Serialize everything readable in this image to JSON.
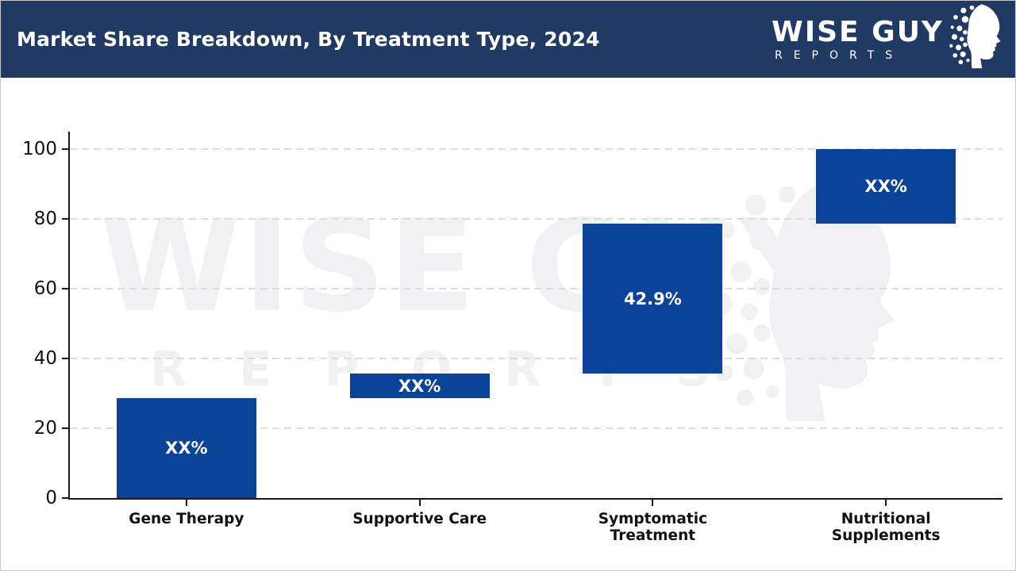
{
  "header": {
    "title": "Market Share Breakdown, By Treatment Type, 2024",
    "logo": {
      "line1": "WISE GUY",
      "line2": "REPORTS"
    }
  },
  "watermark": {
    "line1": "WISE GUY",
    "line2": "REPORTS"
  },
  "colors": {
    "header_bg": "#203a64",
    "bar": "#0b4399",
    "gridline": "#dcdcdc",
    "axis": "#1a1a1a",
    "watermark": "#f1f1f4"
  },
  "chart_data": {
    "type": "bar",
    "subtype": "waterfall-floating-bars",
    "title": "Market Share Breakdown, By Treatment Type, 2024",
    "categories": [
      "Gene Therapy",
      "Supportive Care",
      "Symptomatic Treatment",
      "Nutritional Supplements"
    ],
    "series": [
      {
        "name": "Market share (%)",
        "segments": [
          {
            "category": "Gene Therapy",
            "start": 0,
            "end": 28.6,
            "label": "XX%"
          },
          {
            "category": "Supportive Care",
            "start": 28.6,
            "end": 35.7,
            "label": "XX%"
          },
          {
            "category": "Symptomatic Treatment",
            "start": 35.7,
            "end": 78.6,
            "label": "42.9%"
          },
          {
            "category": "Nutritional Supplements",
            "start": 78.6,
            "end": 100,
            "label": "XX%"
          }
        ]
      }
    ],
    "xlabel": "",
    "ylabel": "",
    "ylim": [
      0,
      105
    ],
    "yticks": [
      0,
      20,
      40,
      60,
      80,
      100
    ],
    "grid": "horizontal dashed",
    "legend": "none"
  }
}
